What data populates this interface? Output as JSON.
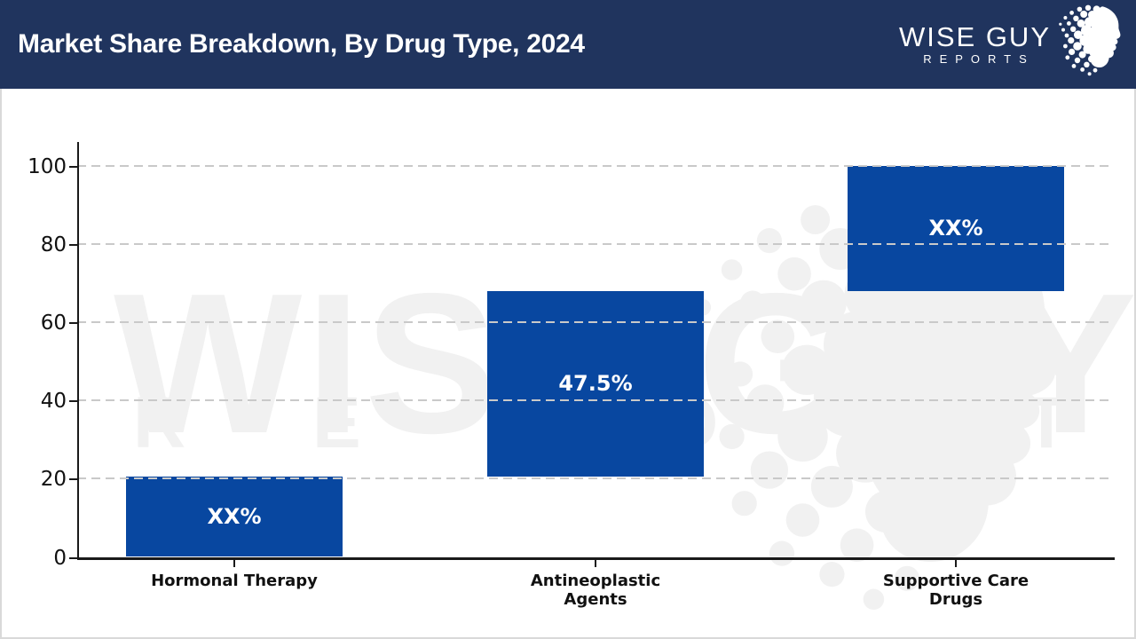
{
  "header": {
    "title": "Market Share Breakdown, By Drug Type, 2024",
    "logo": {
      "name": "WISE GUY",
      "subtitle": "REPORTS"
    }
  },
  "watermark": {
    "line1": "WISE GUY",
    "line2": "REPORTS"
  },
  "chart_data": {
    "type": "bar",
    "variant": "floating-waterfall-segments",
    "title": "Market Share Breakdown, By Drug Type, 2024",
    "categories": [
      {
        "lines": [
          "Hormonal Therapy"
        ]
      },
      {
        "lines": [
          "Antineoplastic",
          "Agents"
        ]
      },
      {
        "lines": [
          "Supportive Care",
          "Drugs"
        ]
      }
    ],
    "segments": [
      {
        "category": "Hormonal Therapy",
        "start": 0,
        "end": 20.5,
        "label": "XX%"
      },
      {
        "category": "Antineoplastic Agents",
        "start": 20.5,
        "end": 68,
        "label": "47.5%"
      },
      {
        "category": "Supportive Care Drugs",
        "start": 68,
        "end": 100,
        "label": "XX%"
      }
    ],
    "xlabel": "",
    "ylabel": "",
    "yticks": [
      0,
      20,
      40,
      60,
      80,
      100
    ],
    "ylim": [
      0,
      105
    ],
    "grid": {
      "axis": "y",
      "style": "dashed",
      "drawn_over_bars": true
    },
    "legend": null
  },
  "colors": {
    "header_bg": "#20345E",
    "title_text": "#FFFFFF",
    "logo_text": "#FFFFFF",
    "bar": "#0847A0",
    "bar_label": "#FFFFFF",
    "axis": "#1A1A1A",
    "tick_label": "#111111",
    "grid": "#C9C9C9",
    "watermark": "#F1F1F1",
    "page_border": "#D9D9D9"
  }
}
